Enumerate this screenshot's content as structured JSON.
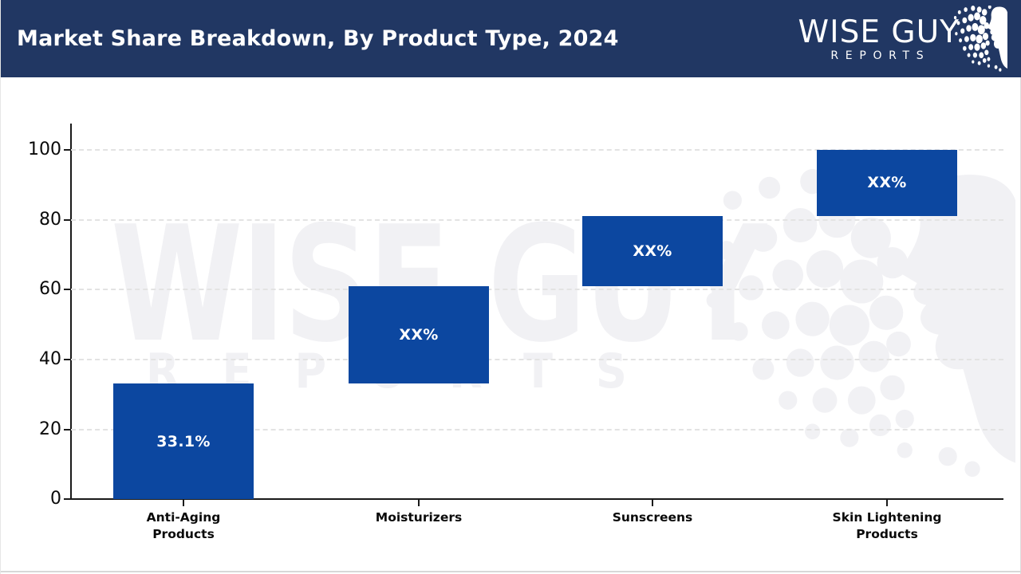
{
  "header": {
    "title": "Market Share Breakdown, By Product Type, 2024",
    "logo": {
      "wordmark": "WISE GUY",
      "sub": "REPORTS"
    }
  },
  "watermark": {
    "wordmark": "WISE GUY",
    "sub": "REPORTS"
  },
  "chart_data": {
    "type": "bar",
    "subtype": "waterfall",
    "title": "Market Share Breakdown, By Product Type, 2024",
    "categories": [
      "Anti-Aging\nProducts",
      "Moisturizers",
      "Sunscreens",
      "Skin Lightening\nProducts"
    ],
    "segments": [
      {
        "category": "Anti-Aging Products",
        "start": 0,
        "end": 33.1,
        "label": "33.1%"
      },
      {
        "category": "Moisturizers",
        "start": 33.1,
        "end": 61,
        "label": "XX%"
      },
      {
        "category": "Sunscreens",
        "start": 61,
        "end": 81,
        "label": "XX%"
      },
      {
        "category": "Skin Lightening Products",
        "start": 81,
        "end": 100,
        "label": "XX%"
      }
    ],
    "yticks": [
      0,
      20,
      40,
      60,
      80,
      100
    ],
    "ylim": [
      0,
      107
    ],
    "xlabel": "",
    "ylabel": "",
    "grid": "dashed horizontal",
    "legend": "none",
    "bar_color": "#0c47a0",
    "bar_label_color": "#ffffff",
    "axis_color": "#1a1a1a",
    "header_bg_color": "#213763",
    "watermark_color": "#f1f1f4"
  }
}
